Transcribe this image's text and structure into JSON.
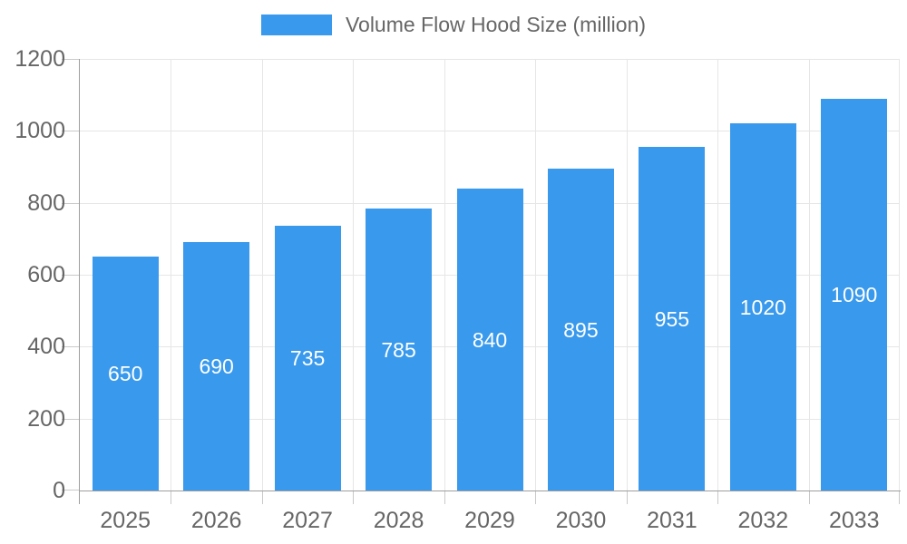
{
  "chart_data": {
    "type": "bar",
    "title": "",
    "legend": "Volume Flow Hood Size (million)",
    "legend_position": "top",
    "categories": [
      "2025",
      "2026",
      "2027",
      "2028",
      "2029",
      "2030",
      "2031",
      "2032",
      "2033"
    ],
    "values": [
      650,
      690,
      735,
      785,
      840,
      895,
      955,
      1020,
      1090
    ],
    "value_labels": [
      "650",
      "690",
      "735",
      "785",
      "840",
      "895",
      "955",
      "1020",
      "1090"
    ],
    "xlabel": "",
    "ylabel": "",
    "ylim": [
      0,
      1200
    ],
    "yticks": [
      0,
      200,
      400,
      600,
      800,
      1000,
      1200
    ],
    "ytick_labels": [
      "0",
      "200",
      "400",
      "600",
      "800",
      "1000",
      "1200"
    ],
    "grid": true
  },
  "colors": {
    "bar_fill": "#3999EC",
    "value_label": "#FFFFFF",
    "axis_line": "#9E9E9E",
    "tick_mark": "#C9C9C9",
    "gridline": "#E6E6E6",
    "label_text": "#666666",
    "background": "#FFFFFF"
  }
}
